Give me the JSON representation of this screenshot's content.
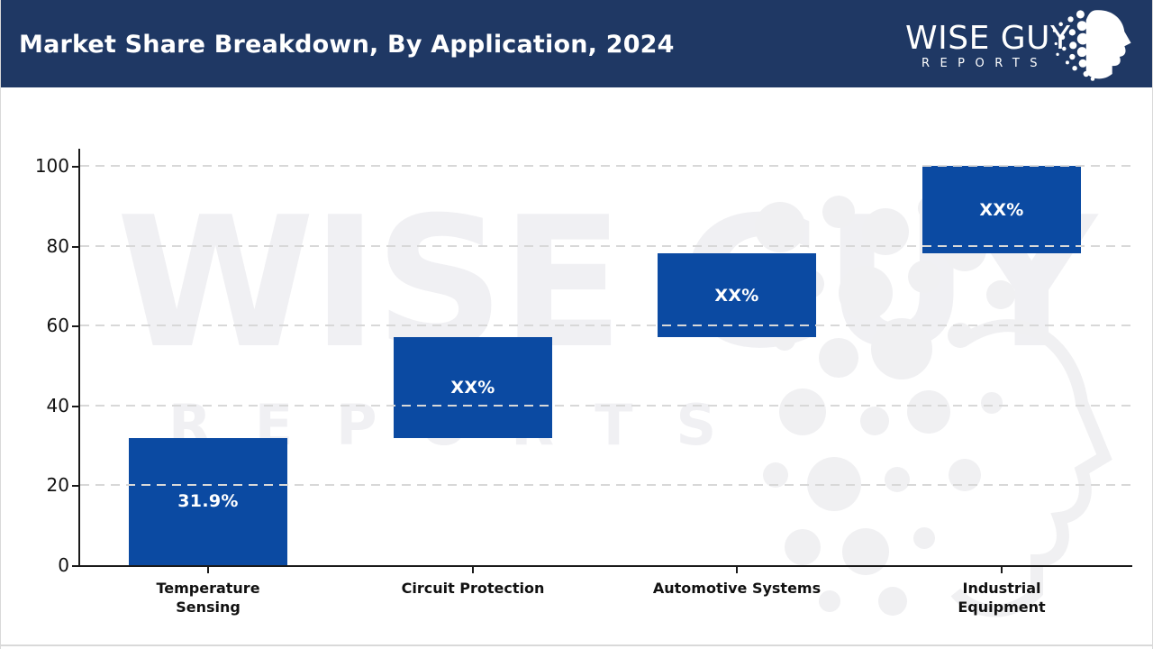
{
  "header": {
    "title": "Market Share Breakdown, By Application, 2024",
    "logo_line1": "WISE GUY",
    "logo_line2": "REPORTS"
  },
  "watermark": {
    "line1": "WISE GUY",
    "line2": "REPORTS"
  },
  "chart_data": {
    "type": "bar",
    "variant": "waterfall",
    "title": "Market Share Breakdown, By Application, 2024",
    "categories": [
      "Temperature Sensing",
      "Circuit Protection",
      "Automotive Systems",
      "Industrial Equipment"
    ],
    "tick_label_lines": [
      [
        "Temperature",
        "Sensing"
      ],
      [
        "Circuit Protection"
      ],
      [
        "Automotive Systems"
      ],
      [
        "Industrial",
        "Equipment"
      ]
    ],
    "segments": [
      {
        "category": "Temperature Sensing",
        "start": 0,
        "end": 31.9,
        "label": "31.9%"
      },
      {
        "category": "Circuit Protection",
        "start": 31.9,
        "end": 57,
        "label": "XX%"
      },
      {
        "category": "Automotive Systems",
        "start": 57,
        "end": 78,
        "label": "XX%"
      },
      {
        "category": "Industrial Equipment",
        "start": 78,
        "end": 100,
        "label": "XX%"
      }
    ],
    "yticks": [
      0,
      20,
      40,
      60,
      80,
      100
    ],
    "ylim": [
      0,
      105
    ],
    "xlabel": "",
    "ylabel": "",
    "grid": "horizontal-dashed",
    "legend": false
  },
  "colors": {
    "header_bg": "#1f3864",
    "bar": "#0b4aa2",
    "bar_label": "#ffffff",
    "grid": "#d8d8d8",
    "axis": "#1a1a1a",
    "watermark": "#f0f0f3",
    "page_border": "#d9d9d9",
    "title_text": "#ffffff"
  }
}
